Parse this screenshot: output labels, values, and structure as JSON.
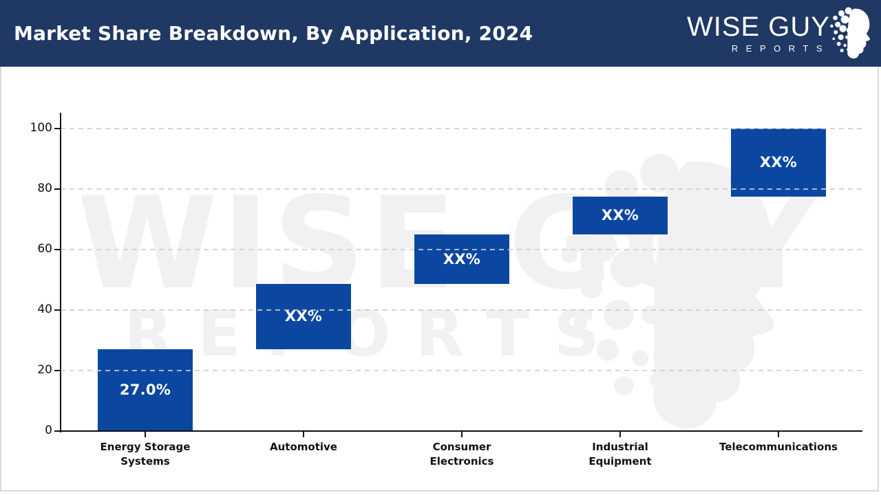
{
  "header": {
    "title": "Market Share Breakdown, By Application, 2024",
    "bg_color": "#1f3864",
    "logo": {
      "line1": "WISE GUY",
      "line2": "REPORTS"
    }
  },
  "watermark": {
    "line1": "WISE GUY",
    "line2": "REPORTS"
  },
  "chart_data": {
    "type": "bar",
    "subtype": "waterfall-stacked-percentage",
    "title": "Market Share Breakdown, By Application, 2024",
    "categories": [
      "Energy Storage\nSystems",
      "Automotive",
      "Consumer\nElectronics",
      "Industrial\nEquipment",
      "Telecommunications"
    ],
    "segments": [
      {
        "category": "Energy Storage Systems",
        "label": "27.0%",
        "start": 0,
        "end": 27,
        "value": 27.0
      },
      {
        "category": "Automotive",
        "label": "XX%",
        "start": 27,
        "end": 48.5,
        "value": 21.5
      },
      {
        "category": "Consumer Electronics",
        "label": "XX%",
        "start": 48.5,
        "end": 65,
        "value": 16.5
      },
      {
        "category": "Industrial Equipment",
        "label": "XX%",
        "start": 65,
        "end": 77.5,
        "value": 12.5
      },
      {
        "category": "Telecommunications",
        "label": "XX%",
        "start": 77.5,
        "end": 100,
        "value": 22.5
      }
    ],
    "ylim": [
      0,
      100
    ],
    "yticks": [
      0,
      20,
      40,
      60,
      80,
      100
    ],
    "grid": "dashed horizontal, drawn over bars",
    "legend": "none",
    "bar_color": "#0b47a1",
    "axis_color": "#111111",
    "grid_color": "#cecece",
    "watermark_color": "#f1f1f4"
  }
}
